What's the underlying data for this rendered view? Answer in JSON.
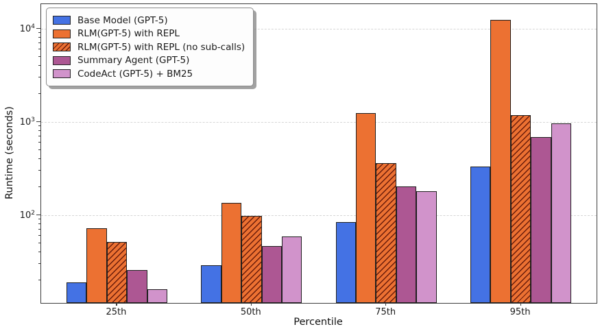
{
  "chart_data": {
    "type": "bar",
    "title": "",
    "xlabel": "Percentile",
    "ylabel": "Runtime (seconds)",
    "yscale": "log",
    "ylim": [
      11.45,
      18400
    ],
    "yticks": [
      "10^2",
      "10^3",
      "10^4"
    ],
    "grid": "horizontal-dashed",
    "legend_position": "upper-left",
    "categories": [
      "25th",
      "50th",
      "75th",
      "95th"
    ],
    "series": [
      {
        "name": "Base Model (GPT-5)",
        "color": "#4472e4",
        "hatch": false,
        "values": [
          19,
          29,
          85,
          335
        ]
      },
      {
        "name": "RLM(GPT-5) with REPL",
        "color": "#ec7132",
        "hatch": false,
        "values": [
          73,
          135,
          1250,
          12500
        ]
      },
      {
        "name": "RLM(GPT-5) with REPL (no sub-calls)",
        "color": "#ec7132",
        "hatch": true,
        "values": [
          52,
          98,
          365,
          1180
        ]
      },
      {
        "name": "Summary Agent (GPT-5)",
        "color": "#ad5793",
        "hatch": false,
        "values": [
          26,
          47,
          205,
          685
        ]
      },
      {
        "name": "CodeAct (GPT-5) + BM25",
        "color": "#d193cb",
        "hatch": false,
        "values": [
          16,
          59,
          180,
          960
        ]
      }
    ]
  }
}
